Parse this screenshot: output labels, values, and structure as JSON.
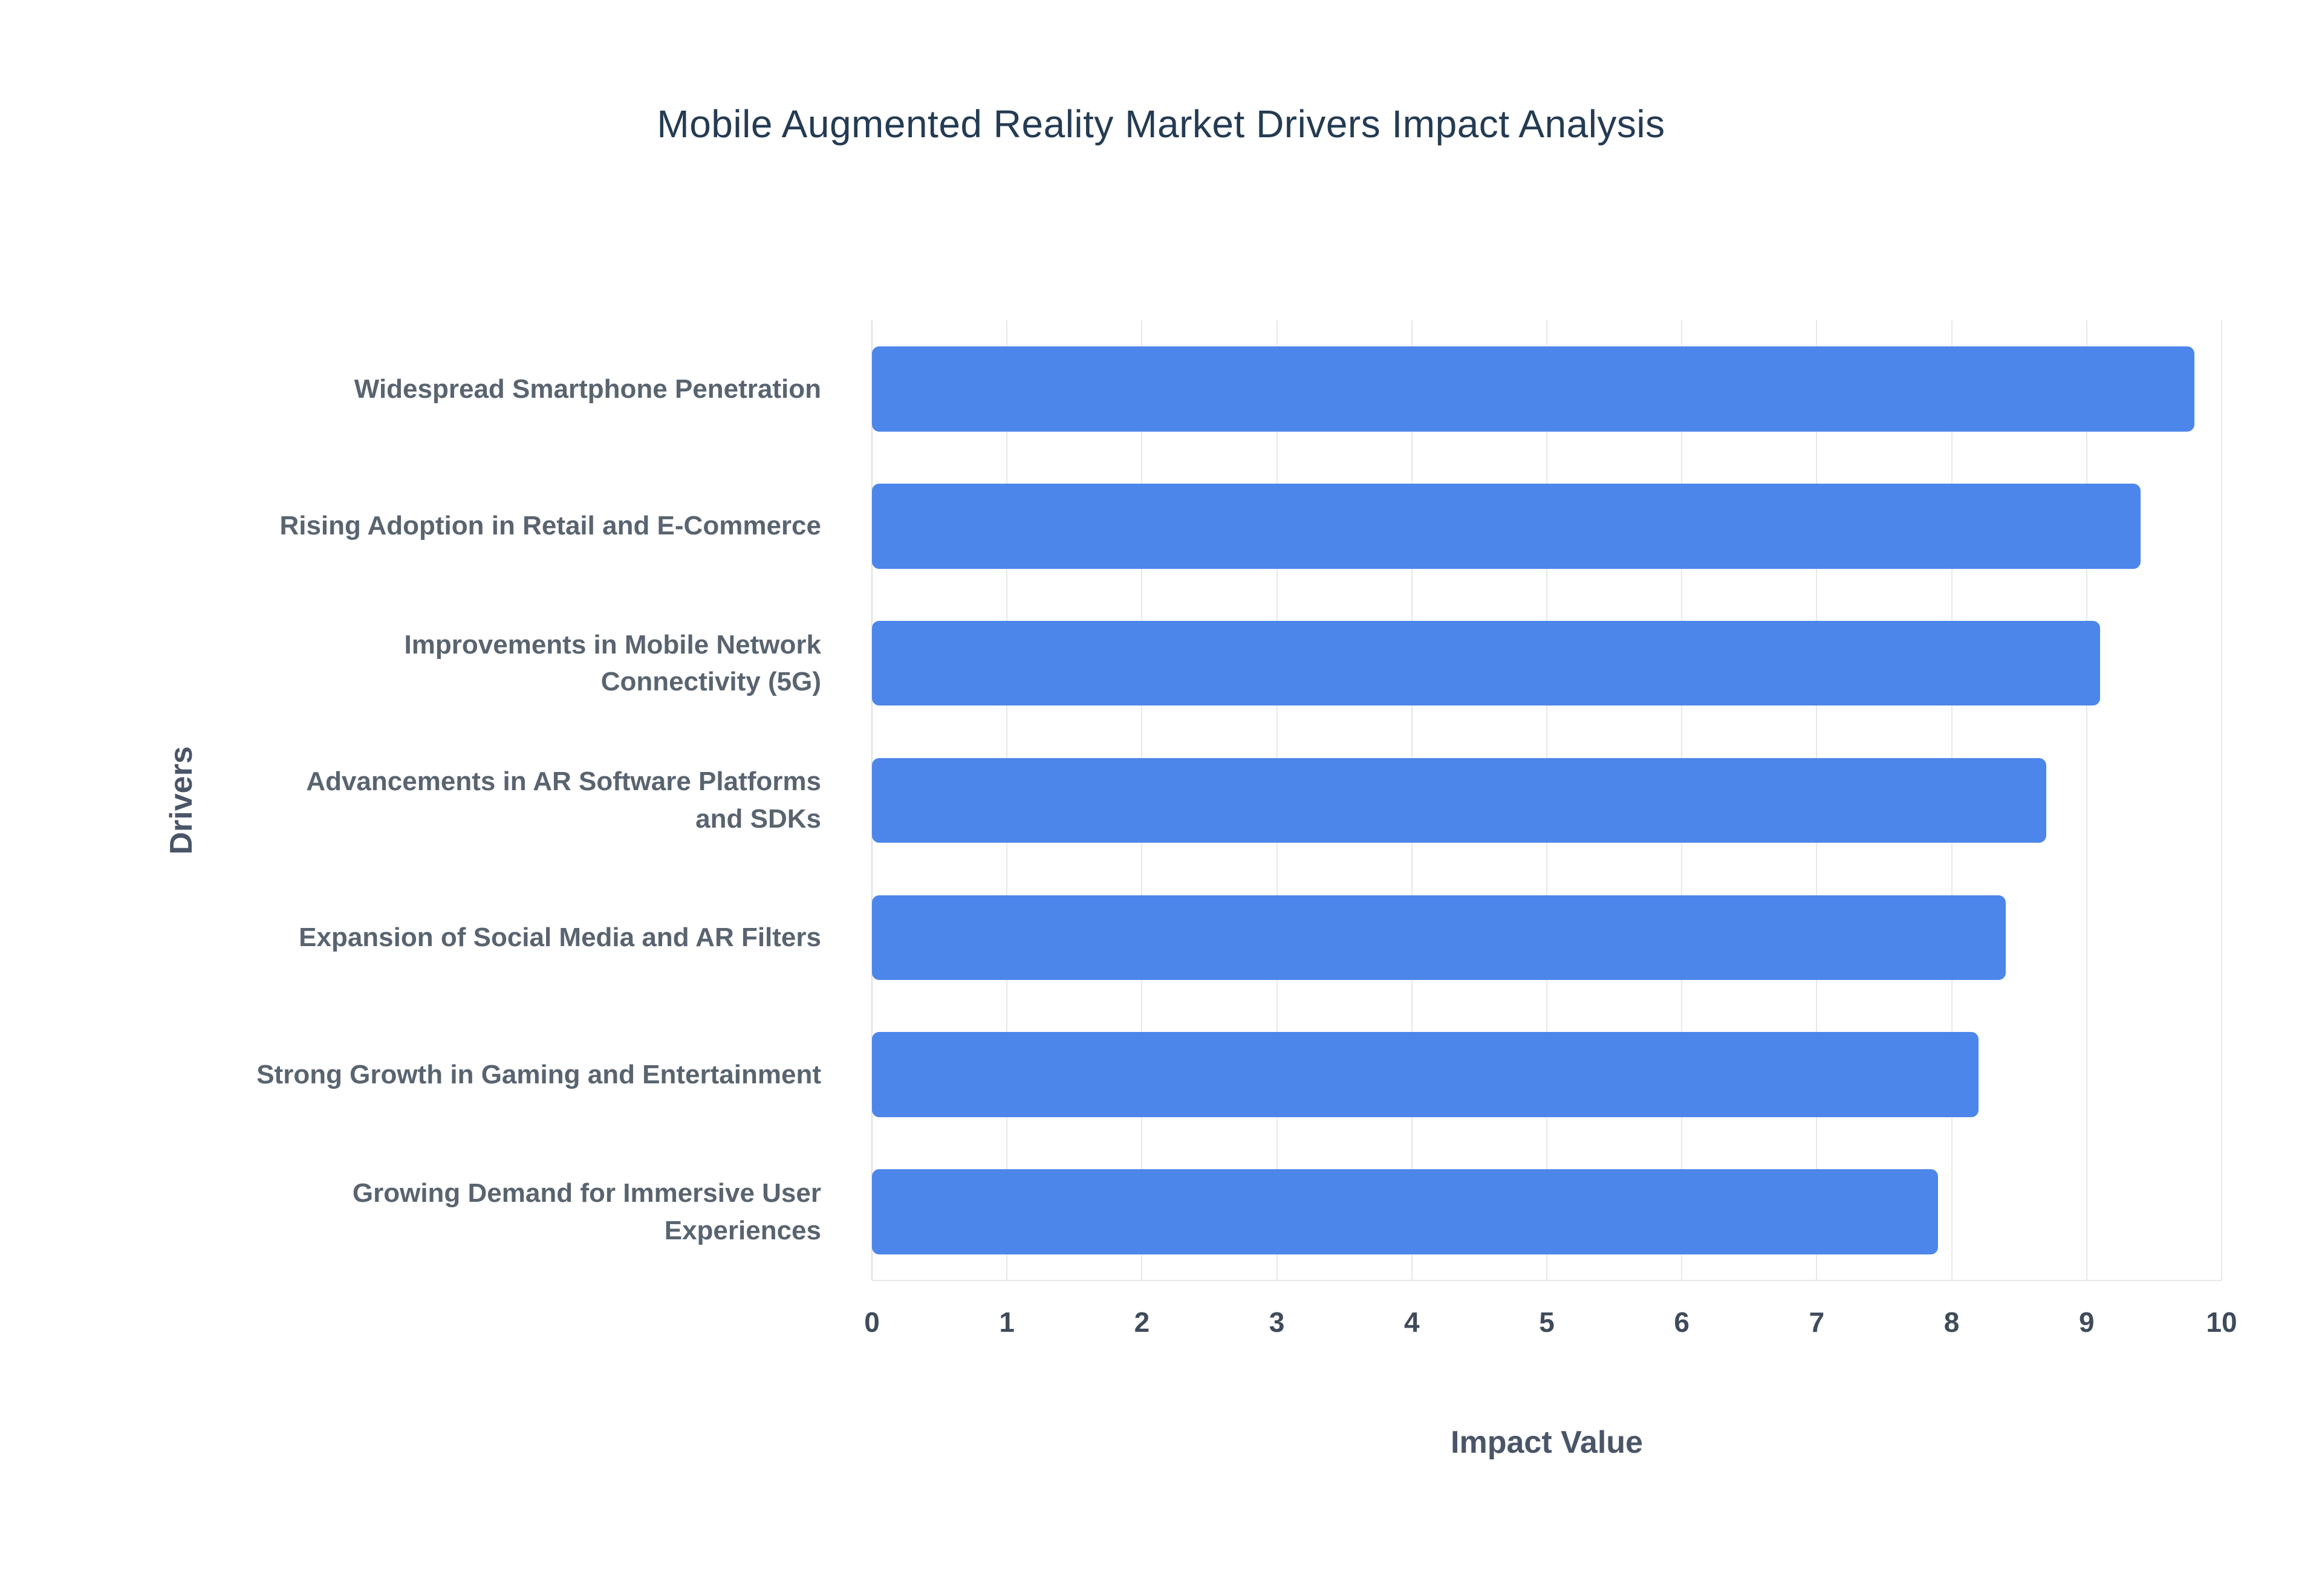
{
  "chart_data": {
    "type": "bar",
    "orientation": "horizontal",
    "title": "Mobile Augmented Reality Market Drivers Impact Analysis",
    "xlabel": "Impact Value",
    "ylabel": "Drivers",
    "categories": [
      "Widespread Smartphone Penetration",
      "Rising Adoption in Retail and E-Commerce",
      "Improvements in Mobile Network Connectivity (5G)",
      "Advancements in AR Software Platforms and SDKs",
      "Expansion of Social Media and AR Filters",
      "Strong Growth in Gaming and Entertainment",
      "Growing Demand for Immersive User Experiences"
    ],
    "values": [
      9.8,
      9.4,
      9.1,
      8.7,
      8.4,
      8.2,
      7.9
    ],
    "xlim": [
      0,
      10
    ],
    "xticks": [
      0,
      1,
      2,
      3,
      4,
      5,
      6,
      7,
      8,
      9,
      10
    ],
    "grid": true,
    "legend": "none",
    "colors": {
      "bar": "#4d86ea",
      "grid": "#e6e8ec",
      "title_text": "#243b53",
      "axis_title_text": "#4a5568",
      "category_label_text": "#596470",
      "tick_label_text": "#3f4b5b",
      "background": "#ffffff"
    }
  }
}
